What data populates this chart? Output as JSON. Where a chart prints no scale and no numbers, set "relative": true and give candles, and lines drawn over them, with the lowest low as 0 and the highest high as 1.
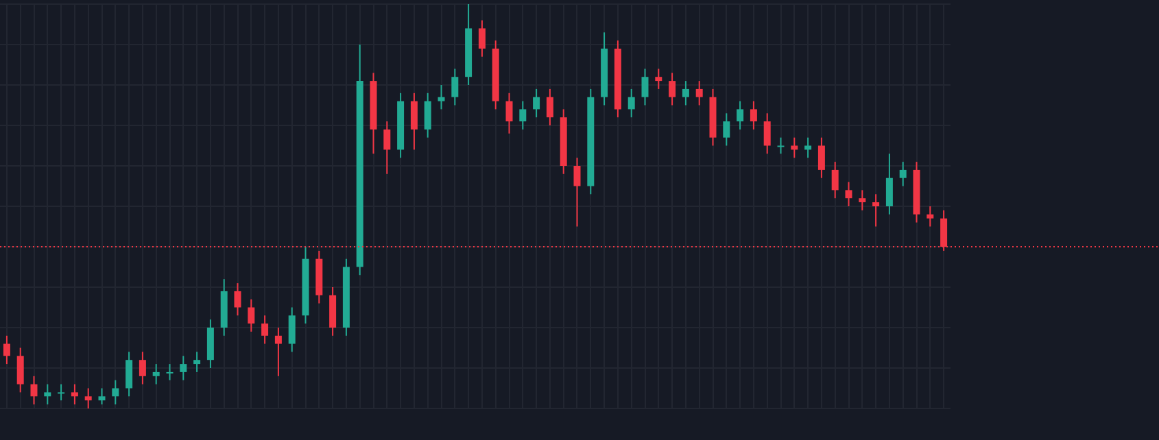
{
  "chart_data": {
    "type": "candlestick",
    "relative": true,
    "grid": true,
    "tick_labels": false,
    "categories": [
      null,
      null,
      null,
      null,
      null,
      null,
      null,
      null,
      null,
      null,
      null,
      null,
      null,
      null,
      null,
      null,
      null,
      null,
      null,
      null,
      null,
      null,
      null,
      null,
      null,
      null,
      null,
      null,
      null,
      null,
      null,
      null,
      null,
      null,
      null,
      null,
      null,
      null,
      null,
      null,
      null,
      null,
      null,
      null,
      null,
      null,
      null,
      null,
      null,
      null,
      null,
      null,
      null,
      null,
      null,
      null,
      null,
      null,
      null,
      null,
      null,
      null,
      null,
      null,
      null,
      null,
      null,
      null,
      null,
      null
    ],
    "ohlc": [
      [
        0.16,
        0.18,
        0.11,
        0.13
      ],
      [
        0.13,
        0.15,
        0.04,
        0.06
      ],
      [
        0.06,
        0.08,
        0.01,
        0.03
      ],
      [
        0.03,
        0.06,
        0.01,
        0.04
      ],
      [
        0.04,
        0.06,
        0.02,
        0.04
      ],
      [
        0.04,
        0.06,
        0.01,
        0.03
      ],
      [
        0.03,
        0.05,
        0.0,
        0.02
      ],
      [
        0.02,
        0.05,
        0.01,
        0.03
      ],
      [
        0.03,
        0.07,
        0.01,
        0.05
      ],
      [
        0.05,
        0.14,
        0.03,
        0.12
      ],
      [
        0.12,
        0.14,
        0.06,
        0.08
      ],
      [
        0.08,
        0.11,
        0.06,
        0.09
      ],
      [
        0.09,
        0.11,
        0.07,
        0.09
      ],
      [
        0.09,
        0.13,
        0.07,
        0.11
      ],
      [
        0.11,
        0.14,
        0.09,
        0.12
      ],
      [
        0.12,
        0.22,
        0.1,
        0.2
      ],
      [
        0.2,
        0.32,
        0.18,
        0.29
      ],
      [
        0.29,
        0.31,
        0.23,
        0.25
      ],
      [
        0.25,
        0.27,
        0.19,
        0.21
      ],
      [
        0.21,
        0.23,
        0.16,
        0.18
      ],
      [
        0.18,
        0.2,
        0.08,
        0.16
      ],
      [
        0.16,
        0.25,
        0.14,
        0.23
      ],
      [
        0.23,
        0.4,
        0.21,
        0.37
      ],
      [
        0.37,
        0.39,
        0.26,
        0.28
      ],
      [
        0.28,
        0.3,
        0.18,
        0.2
      ],
      [
        0.2,
        0.37,
        0.18,
        0.35
      ],
      [
        0.35,
        0.9,
        0.33,
        0.81
      ],
      [
        0.81,
        0.83,
        0.63,
        0.69
      ],
      [
        0.69,
        0.71,
        0.58,
        0.64
      ],
      [
        0.64,
        0.78,
        0.62,
        0.76
      ],
      [
        0.76,
        0.78,
        0.64,
        0.69
      ],
      [
        0.69,
        0.78,
        0.67,
        0.76
      ],
      [
        0.76,
        0.8,
        0.74,
        0.77
      ],
      [
        0.77,
        0.84,
        0.75,
        0.82
      ],
      [
        0.82,
        1.0,
        0.8,
        0.94
      ],
      [
        0.94,
        0.96,
        0.87,
        0.89
      ],
      [
        0.89,
        0.91,
        0.74,
        0.76
      ],
      [
        0.76,
        0.78,
        0.68,
        0.71
      ],
      [
        0.71,
        0.76,
        0.69,
        0.74
      ],
      [
        0.74,
        0.79,
        0.72,
        0.77
      ],
      [
        0.77,
        0.79,
        0.7,
        0.72
      ],
      [
        0.72,
        0.74,
        0.58,
        0.6
      ],
      [
        0.6,
        0.62,
        0.45,
        0.55
      ],
      [
        0.55,
        0.79,
        0.53,
        0.77
      ],
      [
        0.77,
        0.93,
        0.75,
        0.89
      ],
      [
        0.89,
        0.91,
        0.72,
        0.74
      ],
      [
        0.74,
        0.79,
        0.72,
        0.77
      ],
      [
        0.77,
        0.84,
        0.75,
        0.82
      ],
      [
        0.82,
        0.84,
        0.79,
        0.81
      ],
      [
        0.81,
        0.83,
        0.75,
        0.77
      ],
      [
        0.77,
        0.81,
        0.75,
        0.79
      ],
      [
        0.79,
        0.81,
        0.75,
        0.77
      ],
      [
        0.77,
        0.79,
        0.65,
        0.67
      ],
      [
        0.67,
        0.73,
        0.65,
        0.71
      ],
      [
        0.71,
        0.76,
        0.69,
        0.74
      ],
      [
        0.74,
        0.76,
        0.69,
        0.71
      ],
      [
        0.71,
        0.73,
        0.63,
        0.65
      ],
      [
        0.65,
        0.67,
        0.63,
        0.65
      ],
      [
        0.65,
        0.67,
        0.62,
        0.64
      ],
      [
        0.64,
        0.67,
        0.62,
        0.65
      ],
      [
        0.65,
        0.67,
        0.57,
        0.59
      ],
      [
        0.59,
        0.61,
        0.52,
        0.54
      ],
      [
        0.54,
        0.56,
        0.5,
        0.52
      ],
      [
        0.52,
        0.54,
        0.49,
        0.51
      ],
      [
        0.51,
        0.53,
        0.45,
        0.5
      ],
      [
        0.5,
        0.63,
        0.48,
        0.57
      ],
      [
        0.57,
        0.61,
        0.55,
        0.59
      ],
      [
        0.59,
        0.61,
        0.46,
        0.48
      ],
      [
        0.48,
        0.5,
        0.45,
        0.47
      ],
      [
        0.47,
        0.49,
        0.39,
        0.4
      ]
    ],
    "colors": [
      "#f23645",
      "#f23645",
      "#f23645",
      "#22ab94",
      "#22ab94",
      "#f23645",
      "#f23645",
      "#22ab94",
      "#22ab94",
      "#22ab94",
      "#f23645",
      "#22ab94",
      "#22ab94",
      "#22ab94",
      "#22ab94",
      "#22ab94",
      "#22ab94",
      "#f23645",
      "#f23645",
      "#f23645",
      "#f23645",
      "#22ab94",
      "#22ab94",
      "#f23645",
      "#f23645",
      "#22ab94",
      "#22ab94",
      "#f23645",
      "#f23645",
      "#22ab94",
      "#f23645",
      "#22ab94",
      "#22ab94",
      "#22ab94",
      "#22ab94",
      "#f23645",
      "#f23645",
      "#f23645",
      "#22ab94",
      "#22ab94",
      "#f23645",
      "#f23645",
      "#f23645",
      "#22ab94",
      "#22ab94",
      "#f23645",
      "#22ab94",
      "#22ab94",
      "#f23645",
      "#f23645",
      "#22ab94",
      "#f23645",
      "#f23645",
      "#22ab94",
      "#22ab94",
      "#f23645",
      "#f23645",
      "#22ab94",
      "#f23645",
      "#22ab94",
      "#f23645",
      "#f23645",
      "#f23645",
      "#f23645",
      "#f23645",
      "#22ab94",
      "#22ab94",
      "#f23645",
      "#f23645",
      "#f23645"
    ],
    "ref_lines": [
      {
        "axis": "y",
        "value": 0.4,
        "color": "#f23645",
        "line_style": "dotted"
      }
    ]
  }
}
